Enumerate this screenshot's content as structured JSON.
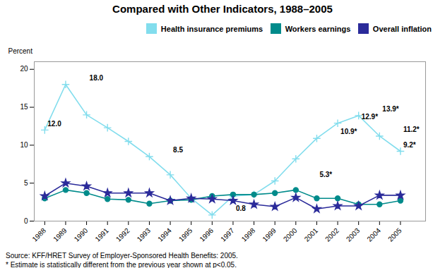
{
  "chart_data": {
    "type": "line",
    "title": "Compared with Other Indicators, 1988–2005",
    "x": [
      1988,
      1989,
      1990,
      1991,
      1992,
      1993,
      1994,
      1995,
      1996,
      1997,
      1998,
      1999,
      2000,
      2001,
      2002,
      2003,
      2004,
      2005
    ],
    "series": [
      {
        "name": "Health insurance premiums",
        "color": "#82DDED",
        "marker": "plus",
        "values": [
          12.0,
          18.0,
          14.0,
          12.3,
          10.5,
          8.5,
          6.1,
          3.0,
          0.8,
          3.3,
          3.5,
          5.3,
          8.2,
          10.9,
          12.9,
          13.9,
          11.2,
          9.2
        ]
      },
      {
        "name": "Workers earnings",
        "color": "#008B8B",
        "marker": "circle",
        "values": [
          3.0,
          4.1,
          3.7,
          2.9,
          2.8,
          2.3,
          2.7,
          2.8,
          3.3,
          3.5,
          3.5,
          3.7,
          4.1,
          3.0,
          3.0,
          2.2,
          2.2,
          2.7
        ]
      },
      {
        "name": "Overall inflation",
        "color": "#2B2B9A",
        "marker": "star",
        "values": [
          3.3,
          5.0,
          4.6,
          3.7,
          3.7,
          3.7,
          2.7,
          3.0,
          2.9,
          2.7,
          2.2,
          1.9,
          3.1,
          1.6,
          2.0,
          2.0,
          3.4,
          3.4
        ]
      }
    ],
    "xlim": [
      1987.5,
      2006.2
    ],
    "xticks": [
      1988,
      1989,
      1990,
      1991,
      1992,
      1993,
      1994,
      1995,
      1996,
      1997,
      1998,
      1999,
      2000,
      2001,
      2002,
      2003,
      2004,
      2005
    ],
    "ylim": [
      0,
      21
    ],
    "yticks": [
      0,
      5,
      10,
      15,
      20
    ],
    "ylabel": "Percent",
    "grid": false,
    "legend": "upper right",
    "annotations": [
      {
        "text": "12.0",
        "x": 1988,
        "y": 12.0
      },
      {
        "text": "18.0",
        "x": 1990,
        "y": 18.0
      },
      {
        "text": "8.5",
        "x": 1994,
        "y": 8.5
      },
      {
        "text": "0.8",
        "x": 1997,
        "y": 0.8
      },
      {
        "text": "5.3*",
        "x": 2001,
        "y": 5.3
      },
      {
        "text": "10.9*",
        "x": 2002,
        "y": 10.9
      },
      {
        "text": "12.9*",
        "x": 2003,
        "y": 12.9
      },
      {
        "text": "13.9*",
        "x": 2004,
        "y": 13.9
      },
      {
        "text": "11.2*",
        "x": 2005,
        "y": 11.2
      },
      {
        "text": "9.2*",
        "x": 2005,
        "y": 9.2
      }
    ],
    "source": "Source: KFF/HRET Survey of Employer-Sponsored Health Benefits: 2005.",
    "footnote": "* Estimate is statistically different from the previous year shown at p<0.05."
  }
}
